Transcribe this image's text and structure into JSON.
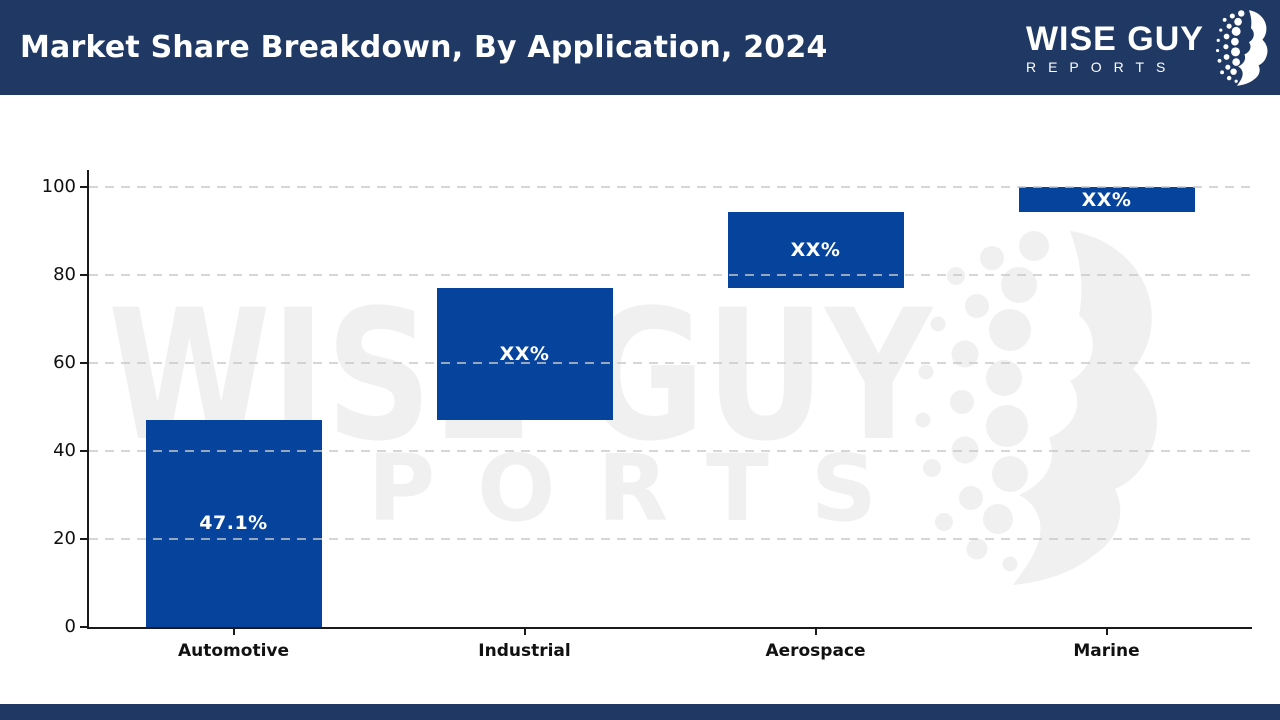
{
  "header": {
    "title": "Market Share Breakdown, By Application, 2024",
    "logo": {
      "wordmark": "WISE GUY",
      "subtext": "REPORTS"
    }
  },
  "watermark": {
    "wordmark": "WISE GUY",
    "subtext": "REPORTS"
  },
  "chart_data": {
    "type": "bar",
    "subtype": "floating-segment-breakdown",
    "title": "Market Share Breakdown, By Application, 2024",
    "categories": [
      "Automotive",
      "Industrial",
      "Aerospace",
      "Marine"
    ],
    "segments": [
      {
        "category": "Automotive",
        "start": 0,
        "end": 47.1,
        "value": 47.1,
        "label": "47.1%"
      },
      {
        "category": "Industrial",
        "start": 47.1,
        "end": 77.0,
        "value": 29.9,
        "label": "XX%"
      },
      {
        "category": "Aerospace",
        "start": 77.0,
        "end": 94.3,
        "value": 17.3,
        "label": "XX%"
      },
      {
        "category": "Marine",
        "start": 94.3,
        "end": 100,
        "value": 5.7,
        "label": "XX%"
      }
    ],
    "xlabel": "",
    "ylabel": "",
    "y_ticks": [
      0,
      20,
      40,
      60,
      80,
      100
    ],
    "ylim": [
      0,
      104
    ],
    "grid": "horizontal-dashed-over-bars",
    "legend": "none",
    "bar_color": "#05439c",
    "bar_label_color": "#ffffff"
  },
  "colors": {
    "header_bg": "#1f3864",
    "footer_bg": "#1f3864",
    "title_text": "#ffffff",
    "bar": "#05439c",
    "axis": "#1a1a1a",
    "tick_label": "#111111",
    "grid_dash": "#cdcdcd",
    "watermark": "#f0f0f0",
    "background": "#ffffff"
  }
}
